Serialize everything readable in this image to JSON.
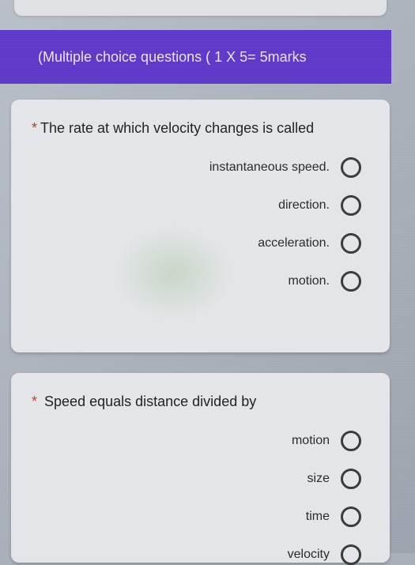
{
  "header": {
    "title": "(Multiple choice questions ( 1 X 5= 5marks",
    "bg_color": "#5e39c9",
    "text_color": "#e8e4f5"
  },
  "questions": [
    {
      "required": true,
      "text": "The rate at which velocity changes is called",
      "options": [
        {
          "label": "instantaneous speed."
        },
        {
          "label": "direction."
        },
        {
          "label": "acceleration."
        },
        {
          "label": "motion."
        }
      ]
    },
    {
      "required": true,
      "text": "Speed equals distance divided by",
      "options": [
        {
          "label": "motion"
        },
        {
          "label": "size"
        },
        {
          "label": "time"
        },
        {
          "label": "velocity"
        }
      ]
    }
  ],
  "colors": {
    "page_bg": "#a8b0ba",
    "card_bg": "#e3e5e8",
    "required": "#c0392b",
    "radio_border": "#3a3a3a"
  }
}
